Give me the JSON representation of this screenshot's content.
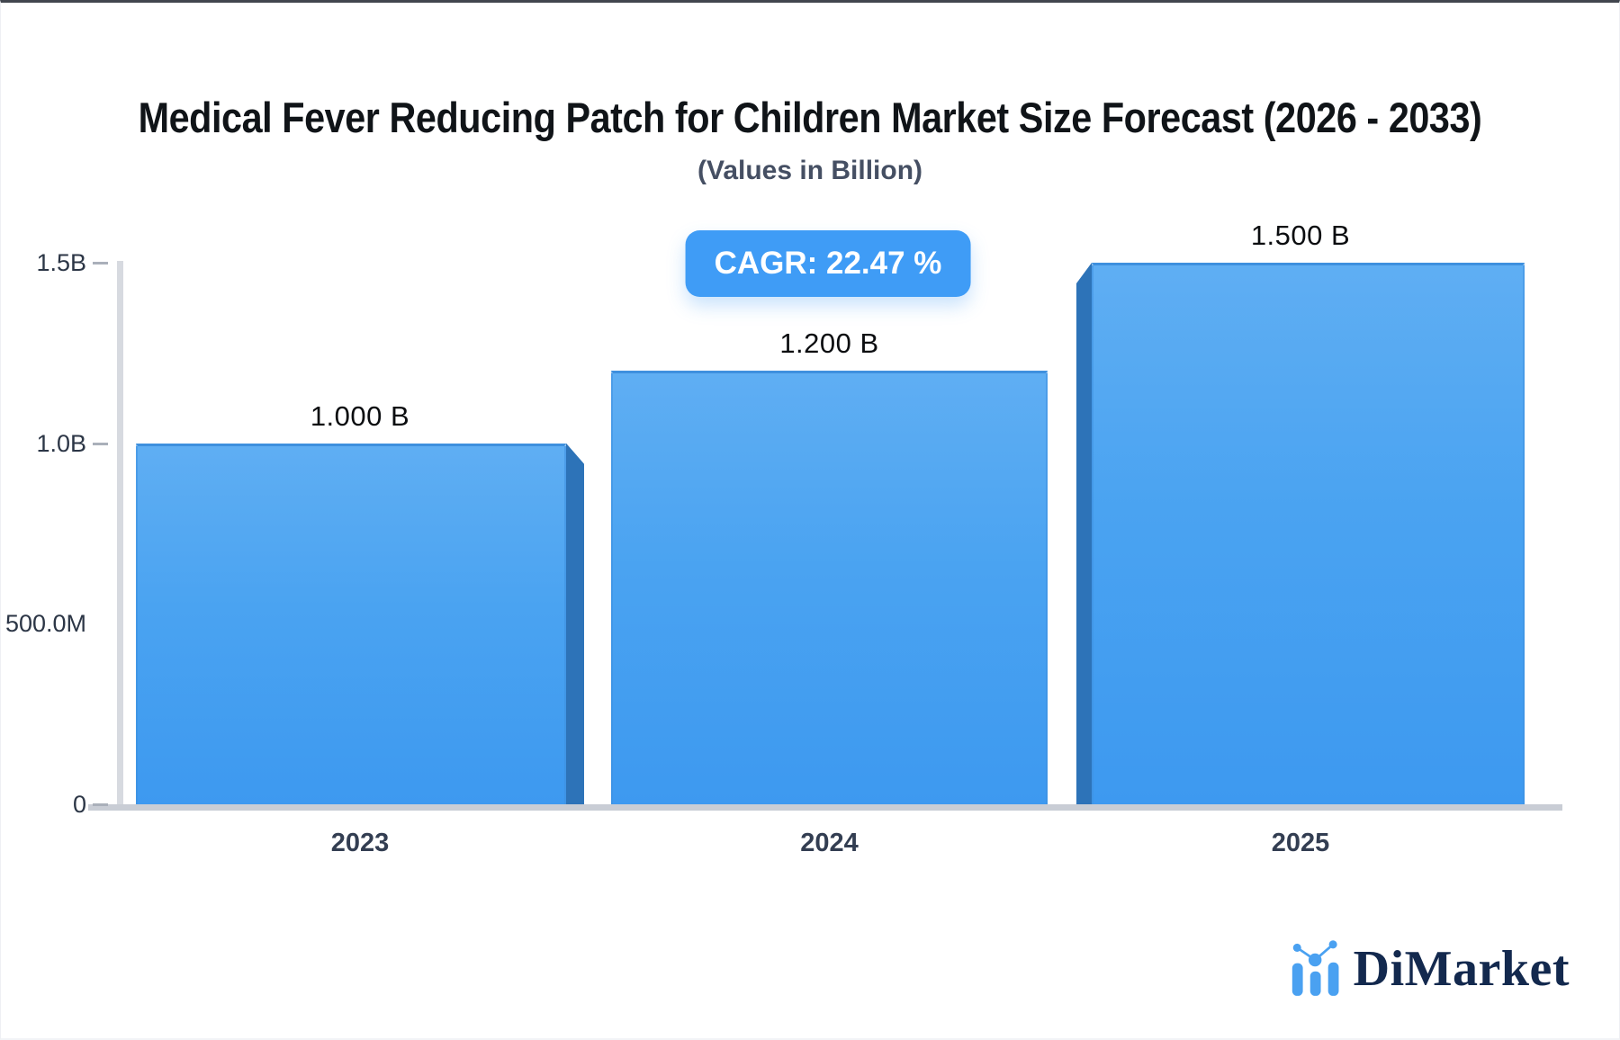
{
  "title": "Medical Fever Reducing Patch for Children Market Size Forecast (2026 - 2033)",
  "subtitle": "(Values in Billion)",
  "badge": {
    "label": "CAGR: 22.47 %"
  },
  "chart_data": {
    "type": "bar",
    "title": "Medical Fever Reducing Patch for Children Market Size Forecast (2026 - 2033)",
    "subtitle": "(Values in Billion)",
    "categories": [
      "2023",
      "2024",
      "2025"
    ],
    "values": [
      1.0,
      1.2,
      1.5
    ],
    "value_labels": [
      "1.000 B",
      "1.200 B",
      "1.500 B"
    ],
    "unit": "Billion",
    "cagr_percent": 22.47,
    "xlabel": "",
    "ylabel": "",
    "ylim": [
      0,
      1.5
    ],
    "yticks": [
      {
        "label": "1.5B",
        "value": 1.5,
        "dash": true
      },
      {
        "label": "1.0B",
        "value": 1.0,
        "dash": true
      },
      {
        "label": "500.0M",
        "value": 0.5,
        "dash": false
      },
      {
        "label": "0",
        "value": 0,
        "dash": true
      }
    ],
    "grid": false,
    "legend": "none",
    "bar_style": "3d-bevel"
  },
  "colors": {
    "bar_top": "#5FAEF3",
    "bar_bottom": "#3D99F0",
    "bar_border": "#3E90DE",
    "bar_side_3d": "#2D73B8",
    "badge_bg": "#3F9CF6",
    "badge_text": "#FFFFFF",
    "axis_line": "#D7DAE0",
    "baseline": "#C9CDD5",
    "tick_dash": "#AAB0BA",
    "title_text": "#101418",
    "subtitle_text": "#454F63",
    "y_label_text": "#2C3646",
    "x_label_text": "#333E52",
    "value_label_text": "#0B0D10",
    "logo_text": "#13294E",
    "logo_icon": "#4AA1F1"
  },
  "logo": {
    "brand": "DiMarket",
    "icon": "bar-chart-logo-icon"
  }
}
